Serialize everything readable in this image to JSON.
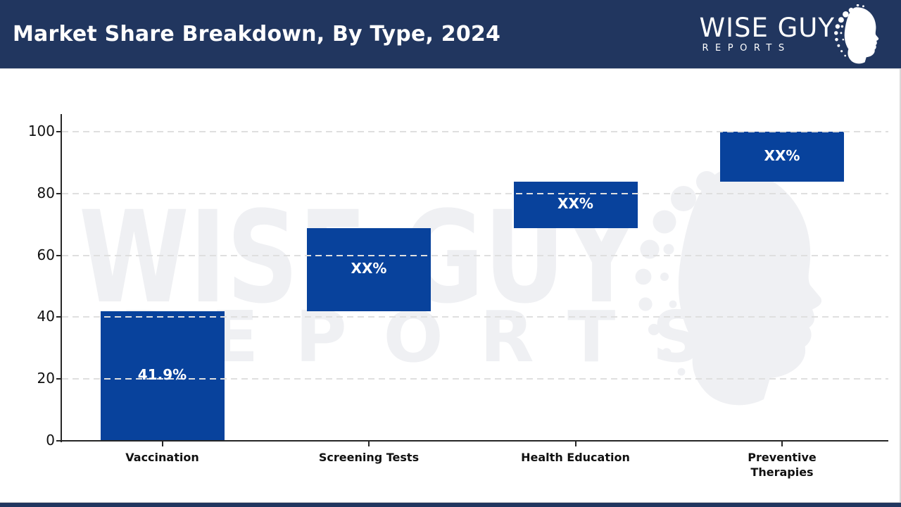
{
  "header": {
    "title": "Market Share Breakdown, By Type, 2024",
    "logo": {
      "line1": "WISE GUY",
      "line2": "REPORTS"
    }
  },
  "watermark": {
    "line1": "WISE GUY",
    "line2": "REPORTS"
  },
  "colors": {
    "header_bg": "#21365F",
    "bar_fill": "#08429C",
    "bar_label": "#ffffff",
    "gridline": "#dfdfdf",
    "axis": "#262626",
    "watermark": "#eff0f3"
  },
  "chart_data": {
    "type": "bar",
    "subtype": "waterfall",
    "title": "Market Share Breakdown, By Type, 2024",
    "xlabel": "",
    "ylabel": "",
    "ylim": [
      0,
      105
    ],
    "yticks": [
      0,
      20,
      40,
      60,
      80,
      100
    ],
    "grid": "horizontal-dashed",
    "legend": "none",
    "categories": [
      "Vaccination",
      "Screening Tests",
      "Health Education",
      "Preventive Therapies"
    ],
    "bars": [
      {
        "category": "Vaccination",
        "start": 0,
        "end": 41.9,
        "label": "41.9%"
      },
      {
        "category": "Screening Tests",
        "start": 41.9,
        "end": 68.8,
        "label": "XX%"
      },
      {
        "category": "Health Education",
        "start": 68.8,
        "end": 83.8,
        "label": "XX%"
      },
      {
        "category": "Preventive Therapies",
        "start": 83.8,
        "end": 100,
        "label": "XX%"
      }
    ]
  }
}
